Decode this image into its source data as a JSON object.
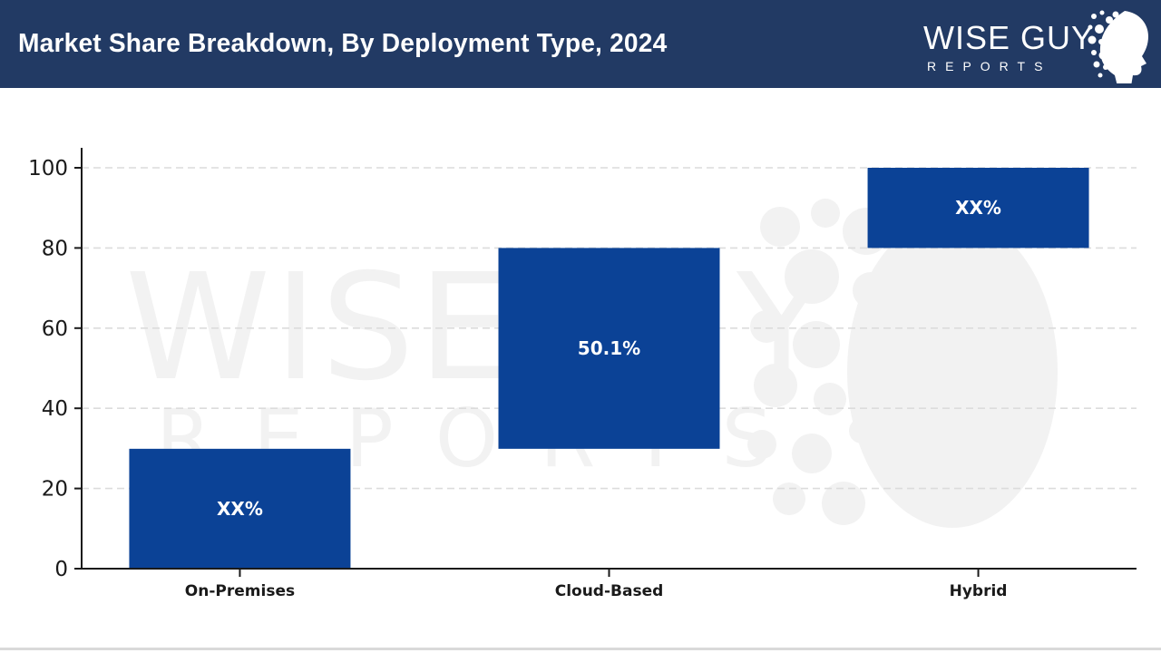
{
  "header": {
    "logo": {
      "brand": "WISE GUY",
      "sub": "REPORTS"
    }
  },
  "watermark": {
    "line1": "WISE G",
    "letter_y": "Y",
    "line2": "REPORTS"
  },
  "chart_data": {
    "type": "bar",
    "variant": "waterfall",
    "title": "Market Share Breakdown, By Deployment Type, 2024",
    "categories": [
      "On-Premises",
      "Cloud-Based",
      "Hybrid"
    ],
    "bars": [
      {
        "category": "On-Premises",
        "start": 0,
        "end": 29.9,
        "value": 29.9,
        "label": "XX%"
      },
      {
        "category": "Cloud-Based",
        "start": 29.9,
        "end": 80,
        "value": 50.1,
        "label": "50.1%"
      },
      {
        "category": "Hybrid",
        "start": 80,
        "end": 100,
        "value": 20,
        "label": "XX%"
      }
    ],
    "yticks": [
      0,
      20,
      40,
      60,
      80,
      100
    ],
    "ylim": [
      0,
      105
    ],
    "xlabel": "",
    "ylabel": "",
    "grid": "horizontal-dashed",
    "legend": "none",
    "colors": {
      "bar": "#0b4296",
      "bar_label": "#ffffff",
      "header_bg": "#223a64",
      "grid": "#dcdcdc",
      "axis": "#1a1a1a",
      "watermark": "#f2f2f2"
    }
  }
}
